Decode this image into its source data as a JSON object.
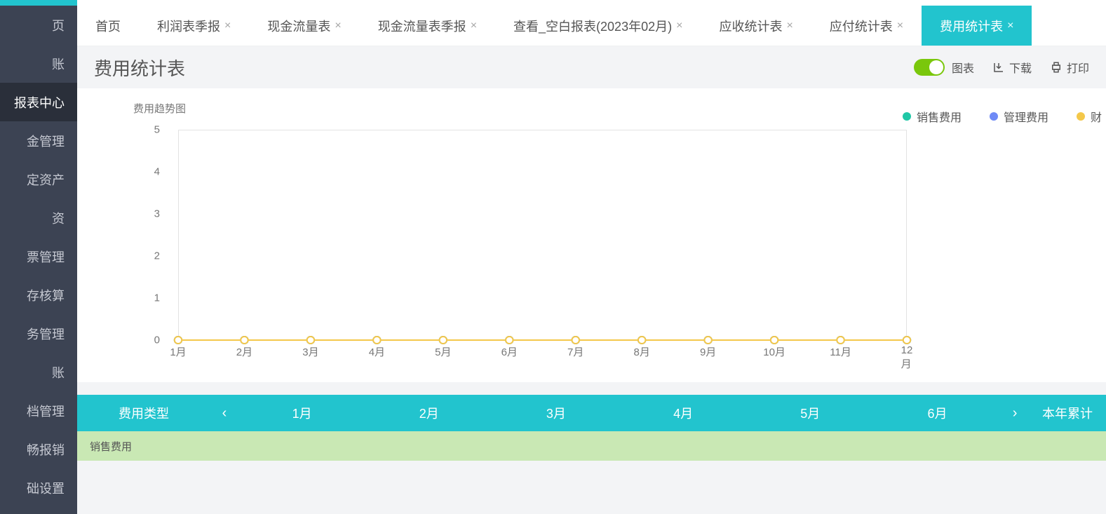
{
  "colors": {
    "accent": "#22c4ce",
    "sidebar_bg": "#3c4353",
    "sidebar_active_bg": "#2a2f3a",
    "toggle_on": "#7ac70c",
    "legend_sales": "#1fc7a6",
    "legend_mgmt": "#6f8af6",
    "legend_fin": "#f4c84a",
    "grid": "#e3e3e3",
    "row_hover": "#c9e8b4"
  },
  "sidebar": {
    "items": [
      {
        "label": "页"
      },
      {
        "label": "账"
      },
      {
        "label": "报表中心"
      },
      {
        "label": "金管理"
      },
      {
        "label": "定资产"
      },
      {
        "label": "资"
      },
      {
        "label": "票管理"
      },
      {
        "label": "存核算"
      },
      {
        "label": "务管理"
      },
      {
        "label": "账"
      },
      {
        "label": "档管理"
      },
      {
        "label": "畅报销"
      },
      {
        "label": "础设置"
      }
    ],
    "active_index": 2
  },
  "tabs": {
    "items": [
      {
        "label": "首页",
        "closable": false
      },
      {
        "label": "利润表季报",
        "closable": true
      },
      {
        "label": "现金流量表",
        "closable": true
      },
      {
        "label": "现金流量表季报",
        "closable": true
      },
      {
        "label": "查看_空白报表(2023年02月)",
        "closable": true
      },
      {
        "label": "应收统计表",
        "closable": true
      },
      {
        "label": "应付统计表",
        "closable": true
      },
      {
        "label": "费用统计表",
        "closable": true
      }
    ],
    "active_index": 7
  },
  "page": {
    "title": "费用统计表",
    "actions": {
      "chart_toggle_label": "图表",
      "download": "下载",
      "print": "打印"
    }
  },
  "chart": {
    "title": "费用趋势图",
    "type": "line",
    "xlabels": [
      "1月",
      "2月",
      "3月",
      "4月",
      "5月",
      "6月",
      "7月",
      "8月",
      "9月",
      "10月",
      "11月",
      "12月"
    ],
    "yticks": [
      0,
      1,
      2,
      3,
      4,
      5
    ],
    "ylim": [
      0,
      5
    ],
    "series": [
      {
        "name": "销售费用",
        "color": "#1fc7a6",
        "values": [
          0,
          0,
          0,
          0,
          0,
          0,
          0,
          0,
          0,
          0,
          0,
          0
        ]
      },
      {
        "name": "管理费用",
        "color": "#6f8af6",
        "values": [
          0,
          0,
          0,
          0,
          0,
          0,
          0,
          0,
          0,
          0,
          0,
          0
        ]
      },
      {
        "name": "财",
        "color": "#f4c84a",
        "values": [
          0,
          0,
          0,
          0,
          0,
          0,
          0,
          0,
          0,
          0,
          0,
          0
        ]
      }
    ],
    "marker_radius": 5,
    "line_width": 2
  },
  "table": {
    "head_first": "费用类型",
    "head_last": "本年累计",
    "month_cols": [
      "1月",
      "2月",
      "3月",
      "4月",
      "5月",
      "6月"
    ],
    "rows": [
      {
        "label": "销售费用",
        "cells": [
          "",
          "",
          "",
          "",
          "",
          ""
        ],
        "ytd": ""
      }
    ]
  }
}
